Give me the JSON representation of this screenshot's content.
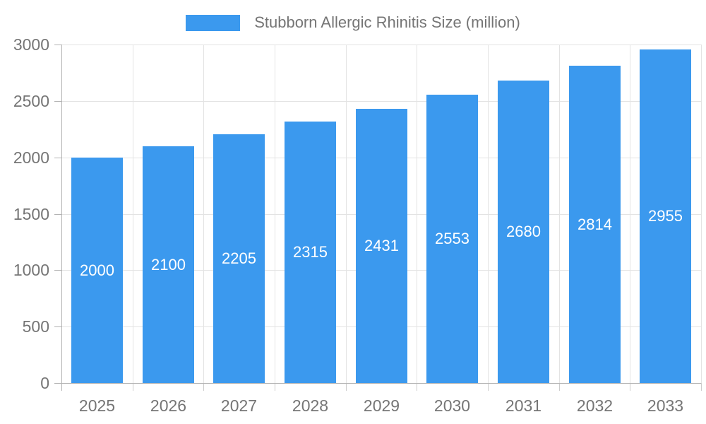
{
  "chart_data": {
    "type": "bar",
    "title": "Stubborn Allergic Rhinitis Size (million)",
    "categories": [
      "2025",
      "2026",
      "2027",
      "2028",
      "2029",
      "2030",
      "2031",
      "2032",
      "2033"
    ],
    "values": [
      2000,
      2100,
      2205,
      2315,
      2431,
      2553,
      2680,
      2814,
      2955
    ],
    "xlabel": "",
    "ylabel": "",
    "ylim": [
      0,
      3000
    ],
    "yticks": [
      0,
      500,
      1000,
      1500,
      2000,
      2500,
      3000
    ],
    "grid": true,
    "legend_position": "top-center",
    "bar_label_position": "inside-center",
    "colors": {
      "bar": "#3B99EE",
      "bar_label": "#ffffff",
      "axis_text": "#757575",
      "grid_line": "#e3e3e3",
      "axis_line": "#b3b3b3",
      "background": "#ffffff"
    }
  }
}
